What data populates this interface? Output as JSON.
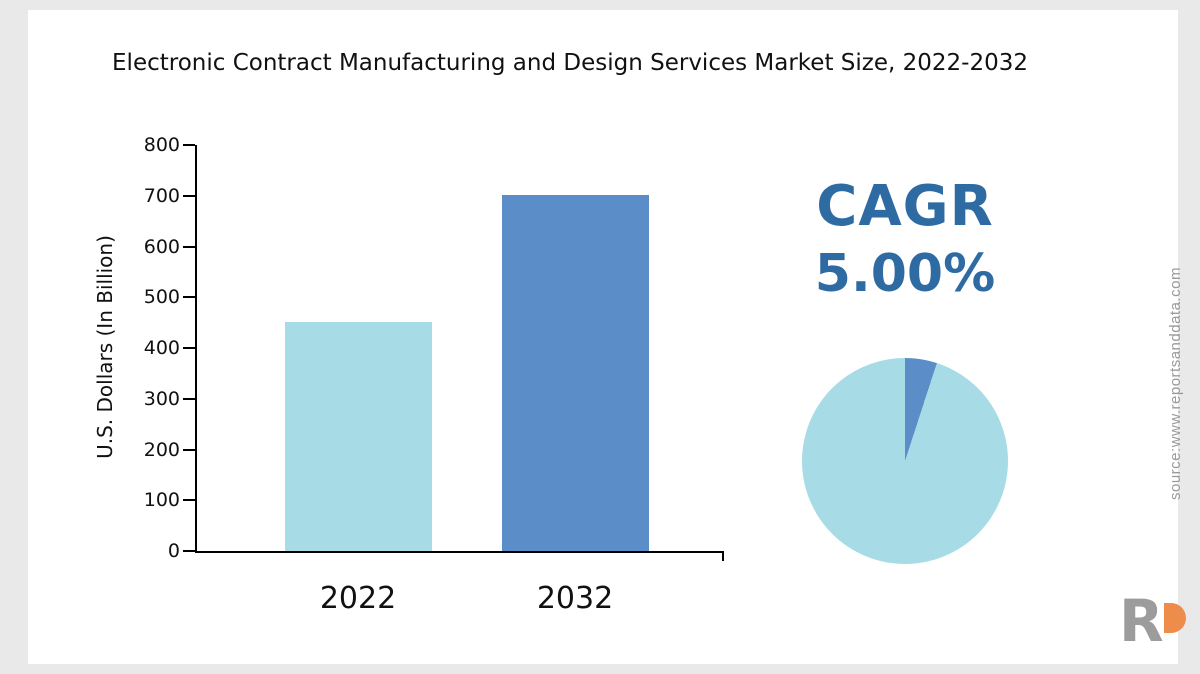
{
  "title": "Electronic Contract Manufacturing and Design Services Market Size, 2022-2032",
  "chart_data": {
    "type": "bar",
    "categories": [
      "2022",
      "2032"
    ],
    "values": [
      452,
      702
    ],
    "title": "Electronic Contract Manufacturing and Design Services Market Size, 2022-2032",
    "xlabel": "",
    "ylabel": "U.S. Dollars (In Billion)",
    "ylim": [
      0,
      800
    ],
    "yticks": [
      0,
      100,
      200,
      300,
      400,
      500,
      600,
      700,
      800
    ],
    "bar_colors": [
      "#a7dbe6",
      "#5b8ec8"
    ],
    "grid": false,
    "legend": "none"
  },
  "cagr": {
    "label": "CAGR",
    "value": "5.00%",
    "color": "#2e6ba3",
    "pie": {
      "slice_percent": 5,
      "slice_color": "#5b8ec8",
      "rest_color": "#a7dbe6"
    }
  },
  "source": "source:www.reportsanddata.com",
  "logo": {
    "letter": "R",
    "accent_color": "#ee8c4b",
    "letter_color": "#9c9c9c"
  }
}
